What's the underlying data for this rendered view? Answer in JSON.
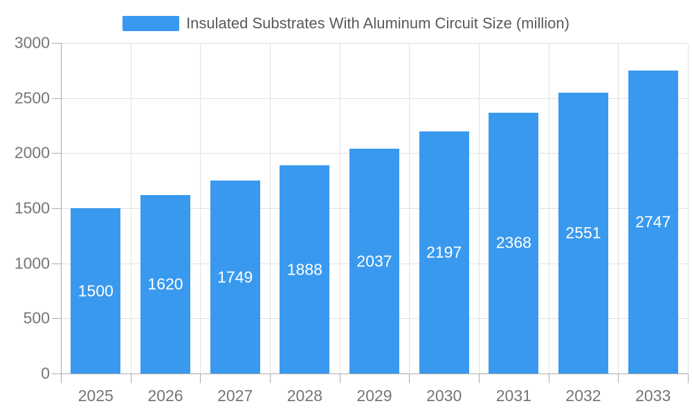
{
  "legend": {
    "label": "Insulated Substrates With Aluminum Circuit Size (million)"
  },
  "chart_data": {
    "type": "bar",
    "title": "",
    "series_name": "Insulated Substrates With Aluminum Circuit Size (million)",
    "categories": [
      "2025",
      "2026",
      "2027",
      "2028",
      "2029",
      "2030",
      "2031",
      "2032",
      "2033"
    ],
    "values": [
      1500,
      1620,
      1749,
      1888,
      2037,
      2197,
      2368,
      2551,
      2747
    ],
    "xlabel": "",
    "ylabel": "",
    "ylim": [
      0,
      3000
    ],
    "yticks": [
      0,
      500,
      1000,
      1500,
      2000,
      2500,
      3000
    ],
    "grid": true,
    "legend_position": "top-center",
    "value_label_position": "inside-center"
  },
  "colors": {
    "bar": "#3999ee",
    "grid": "#e0e0e0",
    "axis": "#aaaaaa",
    "tick_label": "#757575",
    "legend_text": "#595959",
    "value_label": "#ffffff",
    "background": "#ffffff"
  }
}
